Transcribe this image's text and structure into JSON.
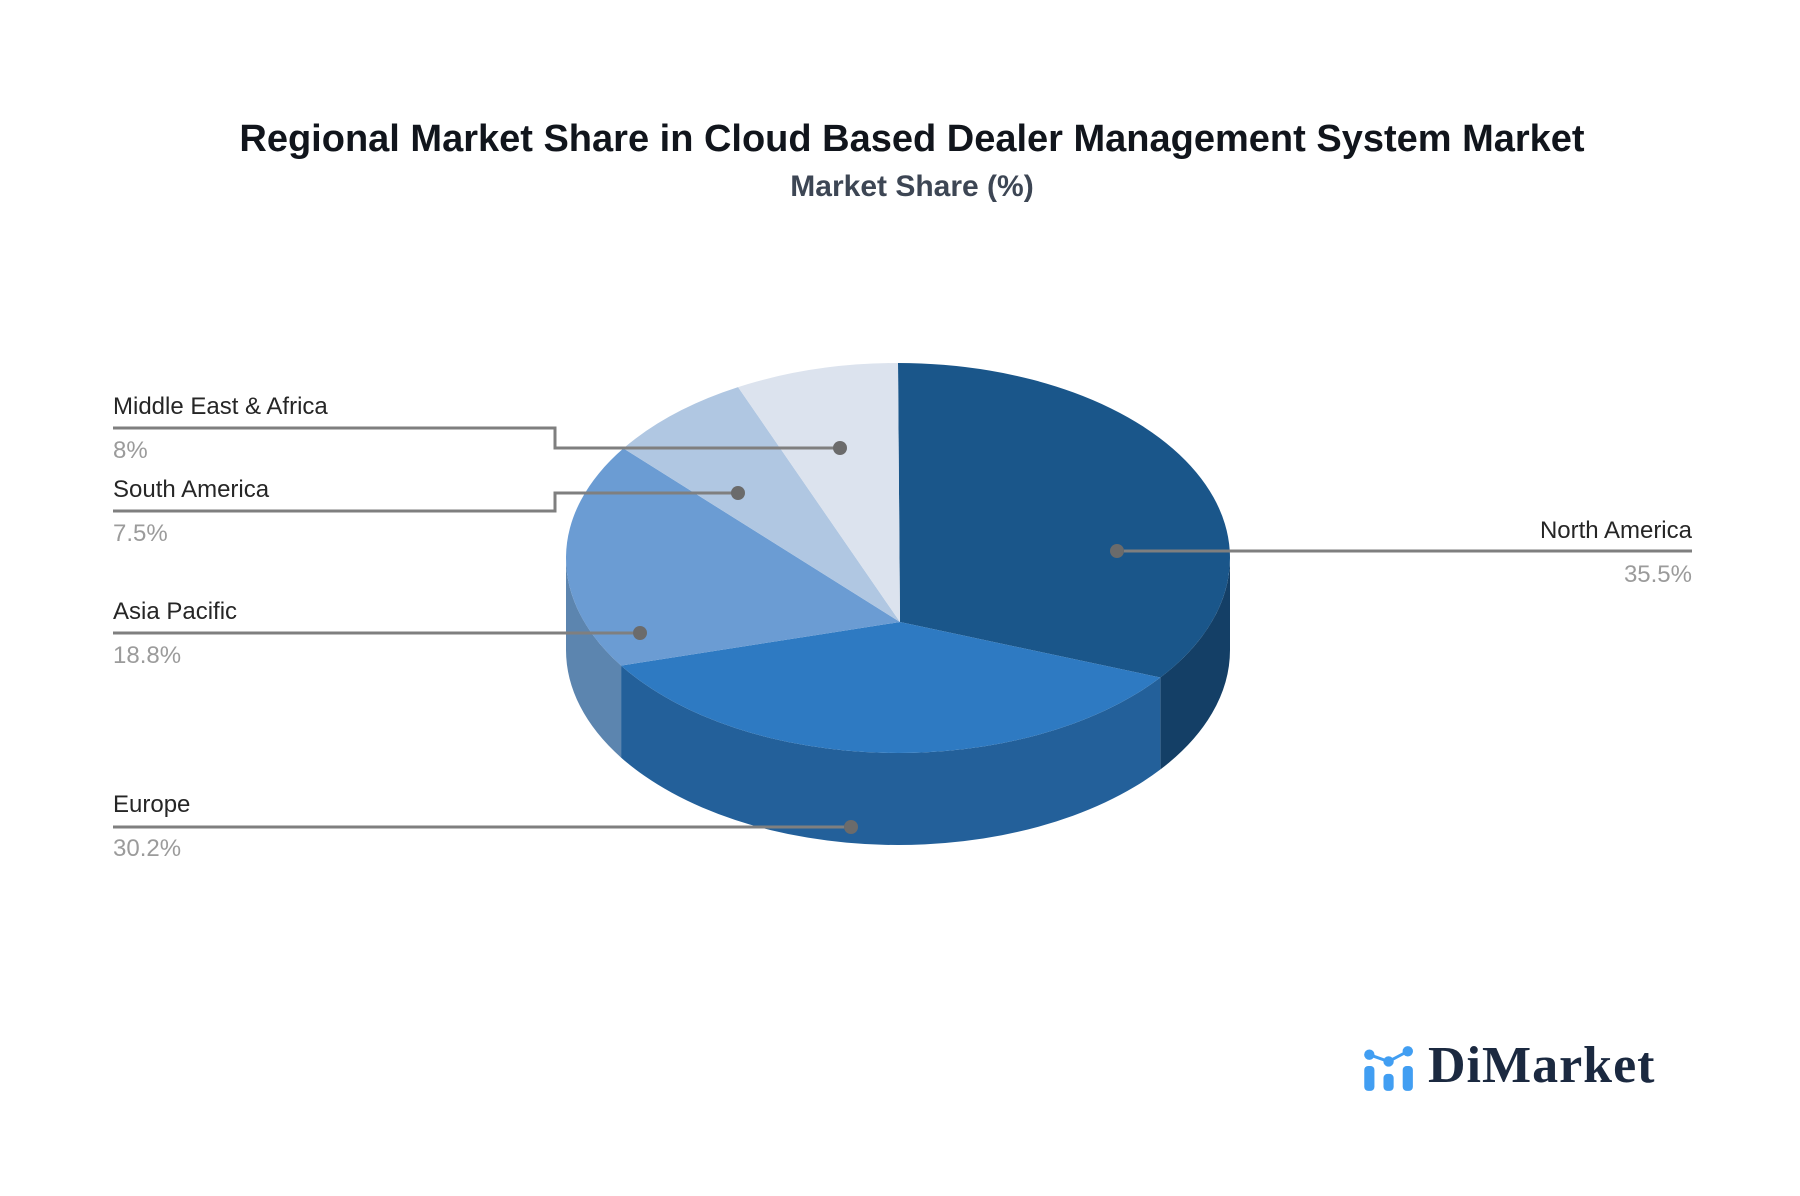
{
  "title": "Regional Market Share in Cloud Based Dealer Management System Market",
  "subtitle": "Market Share (%)",
  "logo": {
    "text": "DiMarket",
    "icon": "bar-line-chart-icon",
    "icon_color": "#419ef2",
    "text_color": "#1b2940"
  },
  "colors": {
    "background": "#ffffff",
    "title_text": "#11151c",
    "subtitle_text": "#3d4654",
    "label_text": "#262626",
    "value_text": "#9b9b9b",
    "leader_line": "#7f7f7f",
    "leader_dot": "#6b6b6b"
  },
  "chart_data": {
    "type": "pie",
    "style": "3d",
    "title": "Regional Market Share in Cloud Based Dealer Management System Market",
    "subtitle": "Market Share (%)",
    "unit": "%",
    "direction": "clockwise",
    "start_angle_deg": 0,
    "legend_position": "none",
    "categories": [
      "North America",
      "Europe",
      "Asia Pacific",
      "South America",
      "Middle East & Africa"
    ],
    "values": [
      35.5,
      30.2,
      18.8,
      7.5,
      8
    ],
    "slices": [
      {
        "id": "north-america",
        "label": "North America",
        "value": 35.5,
        "display": "35.5%",
        "color": "#1A568A",
        "side_color": "#143F66",
        "label_side": "right"
      },
      {
        "id": "europe",
        "label": "Europe",
        "value": 30.2,
        "display": "30.2%",
        "color": "#2E7AC2",
        "side_color": "#23609A",
        "label_side": "left"
      },
      {
        "id": "asia-pacific",
        "label": "Asia Pacific",
        "value": 18.8,
        "display": "18.8%",
        "color": "#6B9CD3",
        "side_color": "#5C85AF",
        "label_side": "left"
      },
      {
        "id": "south-america",
        "label": "South America",
        "value": 7.5,
        "display": "7.5%",
        "color": "#B0C7E2",
        "side_color": "#8FA9C4",
        "label_side": "left"
      },
      {
        "id": "middle-east-africa",
        "label": "Middle East & Africa",
        "value": 8,
        "display": "8%",
        "color": "#DCE3EE",
        "side_color": "#B7C2D2",
        "label_side": "left"
      }
    ]
  }
}
